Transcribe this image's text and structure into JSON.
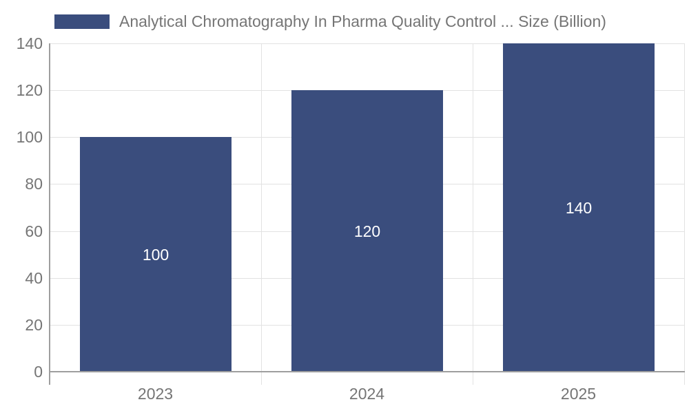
{
  "chart_data": {
    "type": "bar",
    "title": "Analytical Chromatography In Pharma Quality Control ... Size (Billion)",
    "legend_label": "Analytical Chromatography In Pharma Quality Control ... Size (Billion)",
    "legend_position": "top-left",
    "categories": [
      "2023",
      "2024",
      "2025"
    ],
    "series": [
      {
        "name": "Analytical Chromatography In Pharma Quality Control ... Size (Billion)",
        "values": [
          100,
          120,
          140
        ]
      }
    ],
    "value_labels": [
      "100",
      "120",
      "140"
    ],
    "xlabel": "",
    "ylabel": "",
    "ylim": [
      0,
      140
    ],
    "yticks": [
      0,
      20,
      40,
      60,
      80,
      100,
      120,
      140
    ],
    "grid": true,
    "colors": {
      "bar": "#3A4D7D",
      "grid": "#E2E2E2",
      "axis": "#9E9E9E",
      "tick_text": "#757575",
      "legend_text": "#757575",
      "value_text": "#FFFFFF",
      "background": "#FFFFFF"
    }
  }
}
